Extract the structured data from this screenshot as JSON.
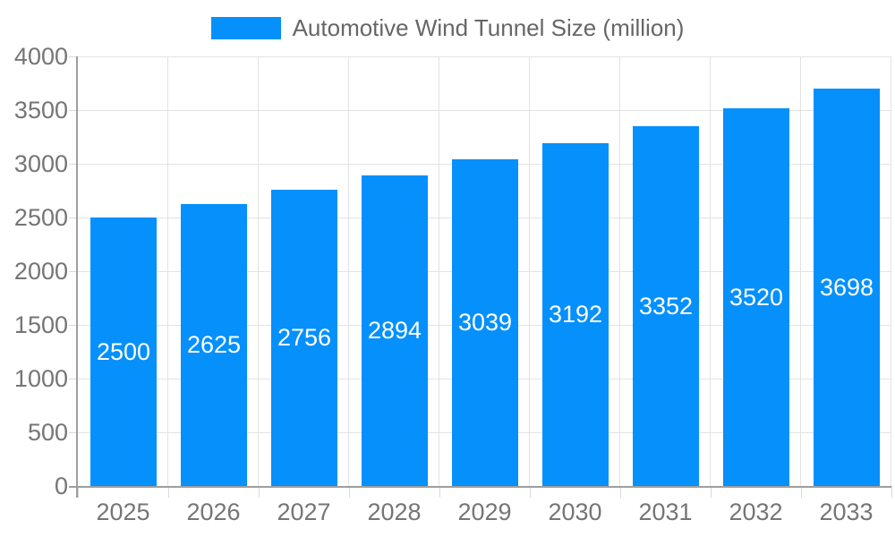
{
  "legend": {
    "label": "Automotive Wind Tunnel Size (million)"
  },
  "chart_data": {
    "type": "bar",
    "title": "Automotive Wind Tunnel Size (million)",
    "categories": [
      "2025",
      "2026",
      "2027",
      "2028",
      "2029",
      "2030",
      "2031",
      "2032",
      "2033"
    ],
    "values": [
      2500,
      2625,
      2756,
      2894,
      3039,
      3192,
      3352,
      3520,
      3698
    ],
    "xlabel": "",
    "ylabel": "",
    "ylim": [
      0,
      4000
    ],
    "yticks": [
      0,
      500,
      1000,
      1500,
      2000,
      2500,
      3000,
      3500,
      4000
    ],
    "grid": true,
    "legend_position": "top",
    "bar_labels_inside": true,
    "colors": {
      "bar": "#0590fc",
      "bar_label": "#ffffff",
      "axis_text": "#757575",
      "legend_text": "#666666",
      "grid_line": "#e3e3e3",
      "axis_line": "#9e9e9e",
      "tick_line": "#d9d9d9",
      "background": "#ffffff"
    }
  }
}
